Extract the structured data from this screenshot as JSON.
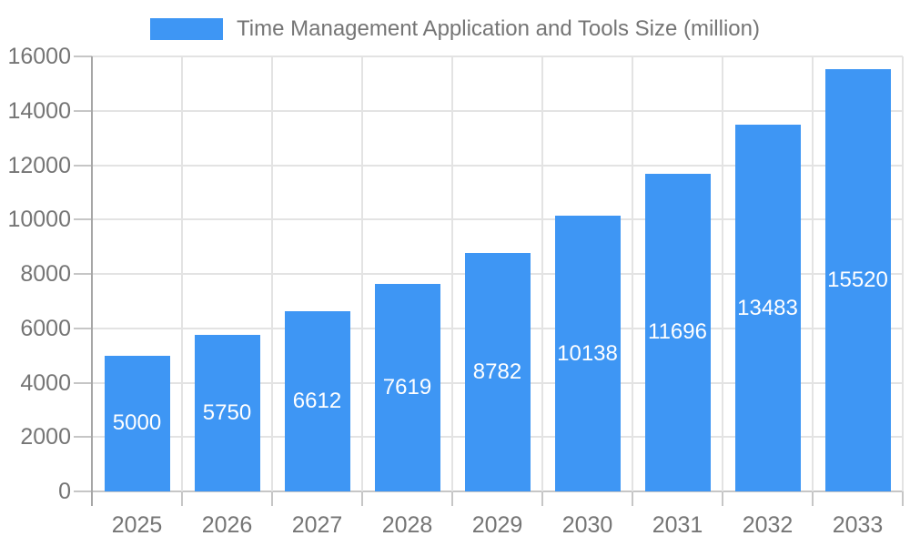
{
  "chart_data": {
    "type": "bar",
    "title": "Time Management Application and Tools Size (million)",
    "categories": [
      "2025",
      "2026",
      "2027",
      "2028",
      "2029",
      "2030",
      "2031",
      "2032",
      "2033"
    ],
    "values": [
      5000,
      5750,
      6612,
      7619,
      8782,
      10138,
      11696,
      13483,
      15520
    ],
    "value_labels": [
      "5000",
      "5750",
      "6612",
      "7619",
      "8782",
      "10138",
      "11696",
      "13483",
      "15520"
    ],
    "xlabel": "",
    "ylabel": "",
    "ylim": [
      0,
      16000
    ],
    "ytick_step": 2000,
    "ytick_labels": [
      "0",
      "2000",
      "4000",
      "6000",
      "8000",
      "10000",
      "12000",
      "14000",
      "16000"
    ],
    "grid": true,
    "legend_position": "top-center",
    "value_label_position": "centered-inside-bar",
    "colors": {
      "bar": "#3E96F4",
      "grid": "#E3E3E3",
      "axis_line": "#A6A6A6",
      "tick": "#C6C6C6",
      "baseline": "#C6C6C6",
      "tick_label": "#757575",
      "title": "#757575",
      "value_label": "#FFFFFF",
      "background": "#FFFFFF"
    }
  },
  "legend": {
    "label": "Time Management Application and Tools Size (million)"
  }
}
